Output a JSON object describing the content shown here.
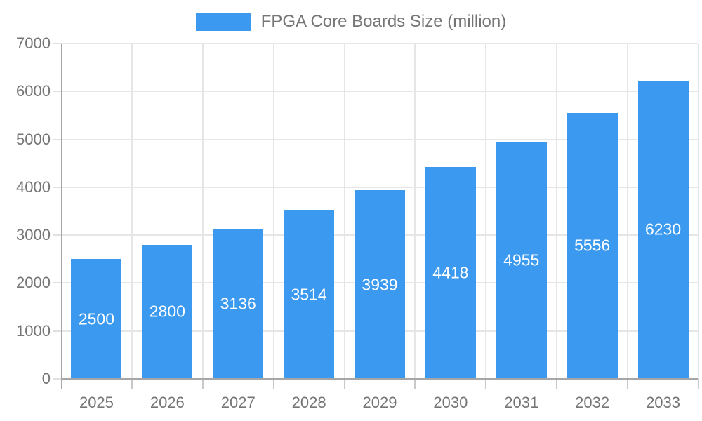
{
  "legend": {
    "items": [
      {
        "label": "FPGA Core Boards Size (million)",
        "swatch_color": "#3b99f0"
      }
    ]
  },
  "chart_data": {
    "type": "bar",
    "title": "FPGA Core Boards Size (million)",
    "categories": [
      "2025",
      "2026",
      "2027",
      "2028",
      "2029",
      "2030",
      "2031",
      "2032",
      "2033"
    ],
    "values": [
      2500,
      2800,
      3136,
      3514,
      3939,
      4418,
      4955,
      5556,
      6230
    ],
    "xlabel": "",
    "ylabel": "",
    "ylim": [
      0,
      7000
    ],
    "yticks": [
      0,
      1000,
      2000,
      3000,
      4000,
      5000,
      6000,
      7000
    ],
    "grid": true,
    "legend_position": "top-center",
    "value_label_position": "inside-center",
    "colors": {
      "bar": "#3b99f0",
      "value_label": "#ffffff",
      "axis_label": "#757575",
      "legend_label": "#757575",
      "gridline": "#e6e6e6",
      "axis_line": "#a6a6a6",
      "x_tick": "#c9c9c9",
      "y_tick": "#e0e0e0"
    }
  }
}
